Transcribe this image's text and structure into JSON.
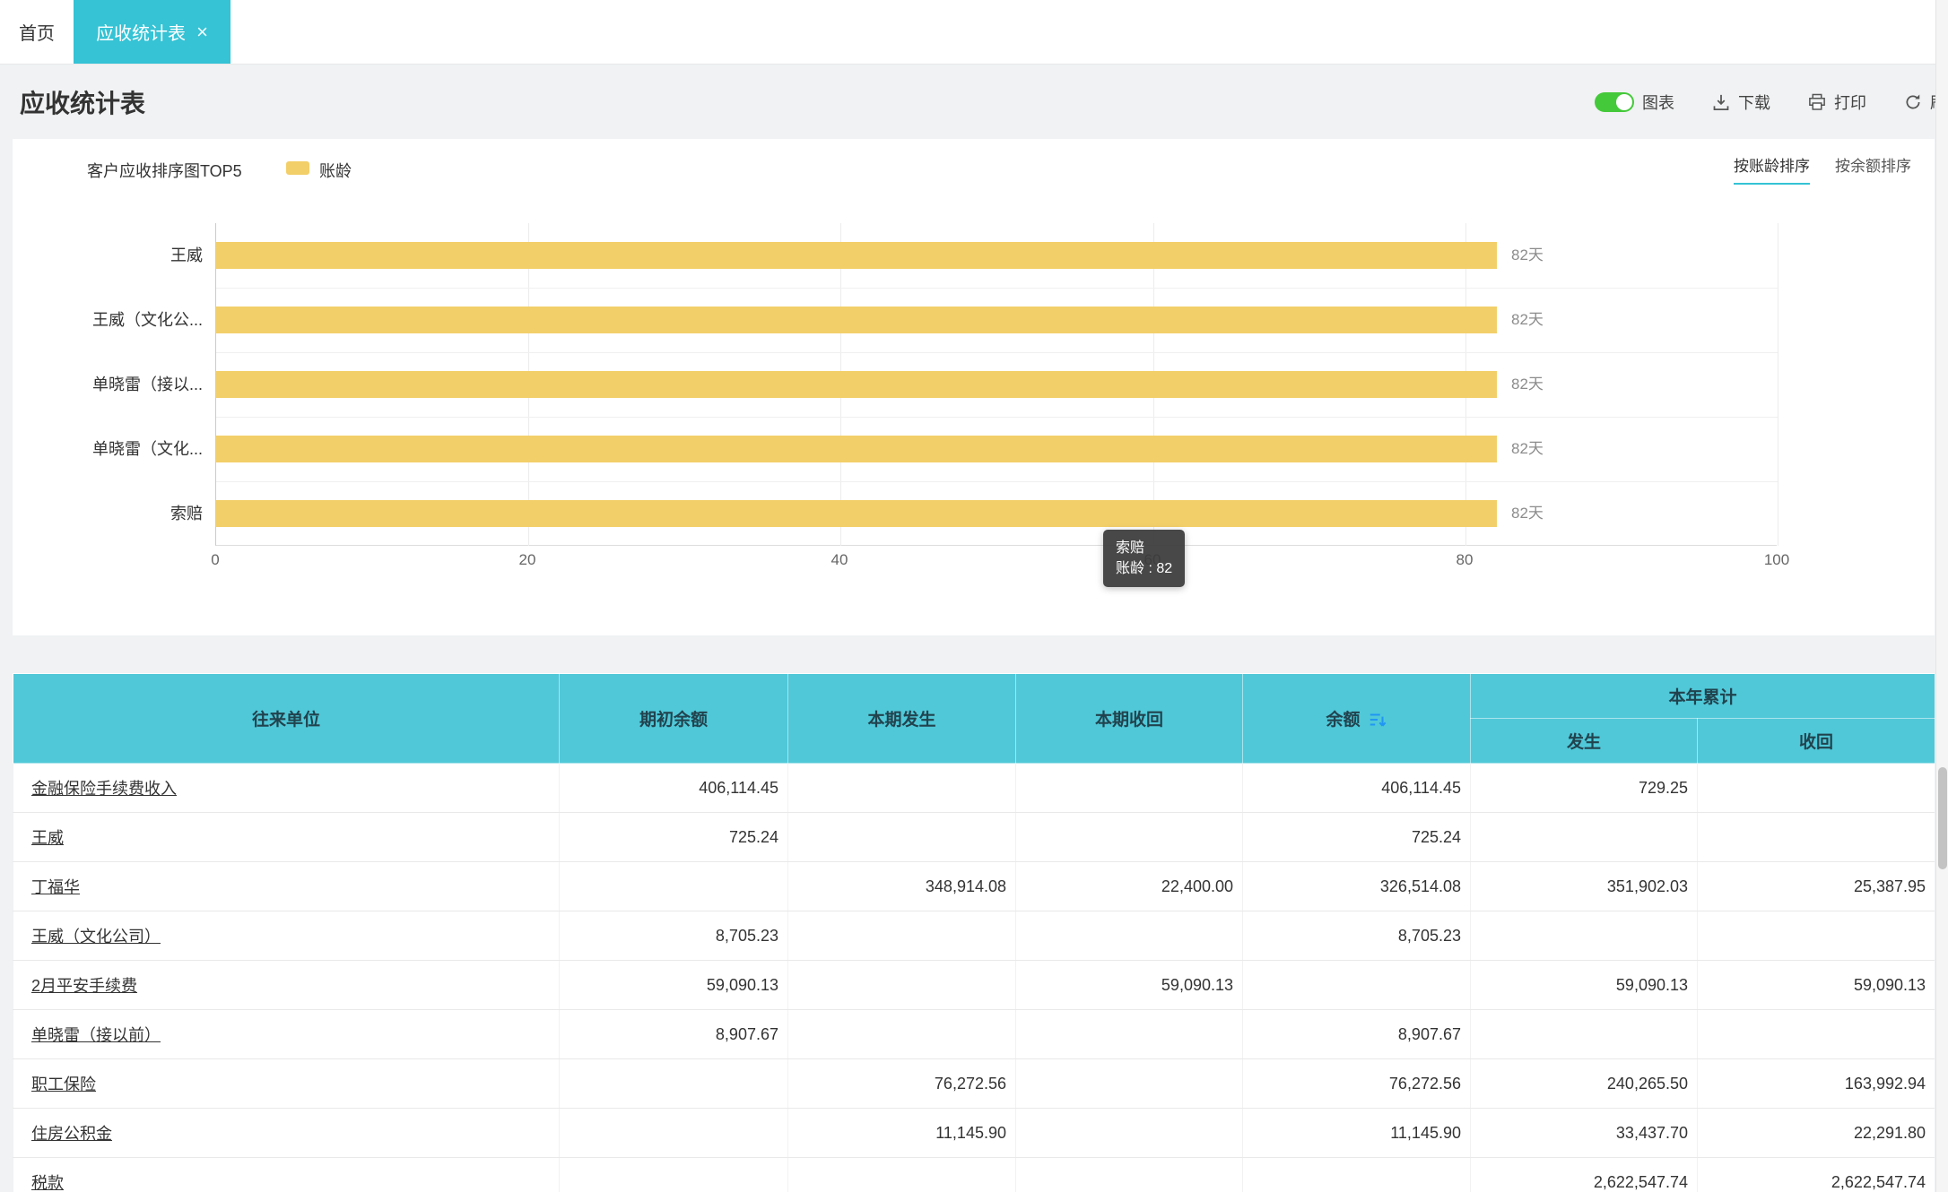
{
  "colors": {
    "accent": "#35c3d5",
    "bar": "#f3cf69",
    "table_header_bg": "#50c8d8",
    "toggle_on": "#44c93a",
    "sort_icon": "#2196f3",
    "tooltip_bg": "#3a3a3a"
  },
  "tabs": {
    "home_label": "首页",
    "active_label": "应收统计表",
    "close_label": "×"
  },
  "toolbar": {
    "title": "应收统计表",
    "chart_toggle_label": "图表",
    "download_label": "下载",
    "print_label": "打印",
    "refresh_label": "刷新"
  },
  "chart": {
    "legend_title": "客户应收排序图TOP5",
    "series_label": "账龄",
    "sort_tabs": [
      {
        "label": "按账龄排序",
        "active": true
      },
      {
        "label": "按余额排序",
        "active": false
      }
    ],
    "tooltip": {
      "line1": "索赔",
      "line2": "账龄 : 82"
    }
  },
  "chart_data": {
    "type": "bar",
    "orientation": "horizontal",
    "title": "客户应收排序图TOP5",
    "series_name": "账龄",
    "categories": [
      "王威",
      "王威（文化公...",
      "单晓雷（接以...",
      "单晓雷（文化...",
      "索赔"
    ],
    "values": [
      82,
      82,
      82,
      82,
      82
    ],
    "value_labels": [
      "82天",
      "82天",
      "82天",
      "82天",
      "82天"
    ],
    "xlim": [
      0,
      100
    ],
    "x_ticks": [
      "0",
      "20",
      "40",
      "60",
      "80",
      "100"
    ],
    "legend_position": "top-left",
    "grid": true
  },
  "table": {
    "group_header": "本年累计",
    "columns": [
      "往来单位",
      "期初余额",
      "本期发生",
      "本期收回",
      "余额",
      "发生",
      "收回"
    ],
    "rows": [
      [
        "金融保险手续费收入",
        "406,114.45",
        "",
        "",
        "406,114.45",
        "729.25",
        ""
      ],
      [
        "王威",
        "725.24",
        "",
        "",
        "725.24",
        "",
        ""
      ],
      [
        "丁福华",
        "",
        "348,914.08",
        "22,400.00",
        "326,514.08",
        "351,902.03",
        "25,387.95"
      ],
      [
        "王威（文化公司）",
        "8,705.23",
        "",
        "",
        "8,705.23",
        "",
        ""
      ],
      [
        "2月平安手续费",
        "59,090.13",
        "",
        "59,090.13",
        "",
        "59,090.13",
        "59,090.13"
      ],
      [
        "单晓雷（接以前）",
        "8,907.67",
        "",
        "",
        "8,907.67",
        "",
        ""
      ],
      [
        "职工保险",
        "",
        "76,272.56",
        "",
        "76,272.56",
        "240,265.50",
        "163,992.94"
      ],
      [
        "住房公积金",
        "",
        "11,145.90",
        "",
        "11,145.90",
        "33,437.70",
        "22,291.80"
      ],
      [
        "税款",
        "",
        "",
        "",
        "",
        "2,622,547.74",
        "2,622,547.74"
      ]
    ]
  }
}
